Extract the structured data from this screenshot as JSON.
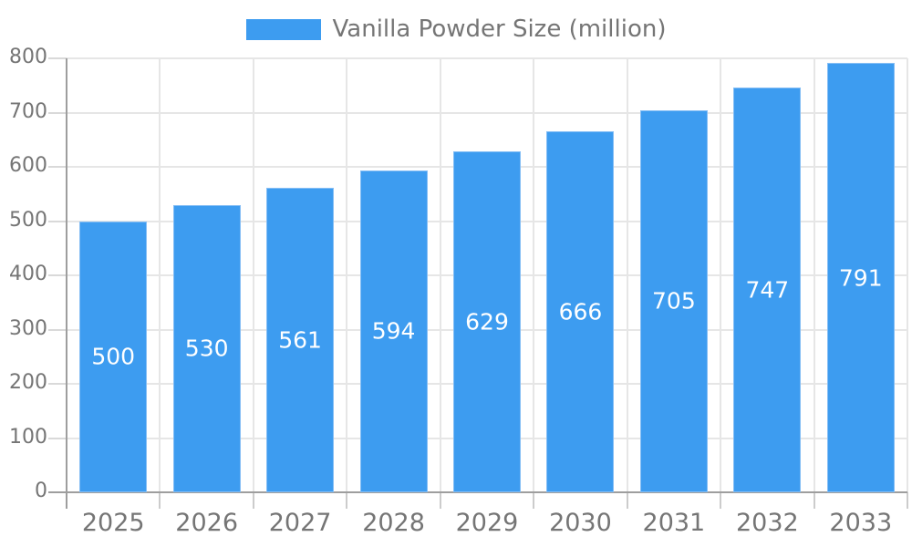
{
  "legend": {
    "label": "Vanilla Powder Size (million)"
  },
  "chart_data": {
    "type": "bar",
    "title": "Vanilla Powder Size (million)",
    "categories": [
      "2025",
      "2026",
      "2027",
      "2028",
      "2029",
      "2030",
      "2031",
      "2032",
      "2033"
    ],
    "values": [
      500,
      530,
      561,
      594,
      629,
      666,
      705,
      747,
      791
    ],
    "show_value_labels": true,
    "xlabel": "",
    "ylabel": "",
    "ylim": [
      0,
      800
    ],
    "yticks": [
      0,
      100,
      200,
      300,
      400,
      500,
      600,
      700,
      800
    ],
    "grid": true,
    "legend_position": "top-center",
    "colors": {
      "bar": "#3d9cf0",
      "bar_border": "#85bef5",
      "axis_line": "#9e9e9e",
      "grid_line": "#e6e6e6",
      "tick_line": "#cccccc",
      "text": "#757575",
      "value_label_text": "#ffffff",
      "background": "#ffffff"
    }
  }
}
